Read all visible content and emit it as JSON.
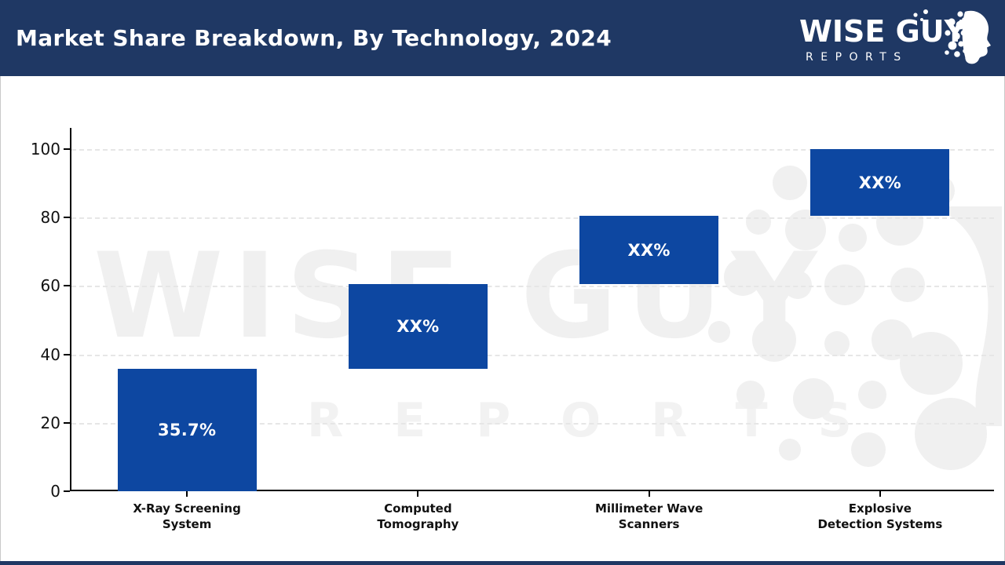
{
  "header": {
    "title": "Market Share Breakdown, By Technology, 2024",
    "bg_color": "#1f3864",
    "logo": {
      "line1": "WISE GUY",
      "line2": "REPORTS"
    }
  },
  "watermark": {
    "line1": "WISE GUY",
    "line2": "REPORTS"
  },
  "footer": {
    "bar_color": "#1f3864"
  },
  "chart_data": {
    "type": "bar",
    "subtype": "floating-cumulative-bars",
    "title": "Market Share Breakdown, By Technology, 2024",
    "categories": [
      "X-Ray Screening\nSystem",
      "Computed\nTomography",
      "Millimeter Wave\nScanners",
      "Explosive\nDetection Systems"
    ],
    "segments": [
      {
        "from": 0,
        "to": 35.7,
        "label": "35.7%"
      },
      {
        "from": 35.7,
        "to": 60.5,
        "label": "XX%"
      },
      {
        "from": 60.5,
        "to": 80.5,
        "label": "XX%"
      },
      {
        "from": 80.5,
        "to": 100,
        "label": "XX%"
      }
    ],
    "y_ticks": [
      0,
      20,
      40,
      60,
      80,
      100
    ],
    "ylim": [
      0,
      106
    ],
    "xlabel": "",
    "ylabel": "",
    "bar_color": "#0d47a1",
    "grid": "horizontal-dashed",
    "grid_color": "#e6e6e6",
    "legend": "none"
  }
}
